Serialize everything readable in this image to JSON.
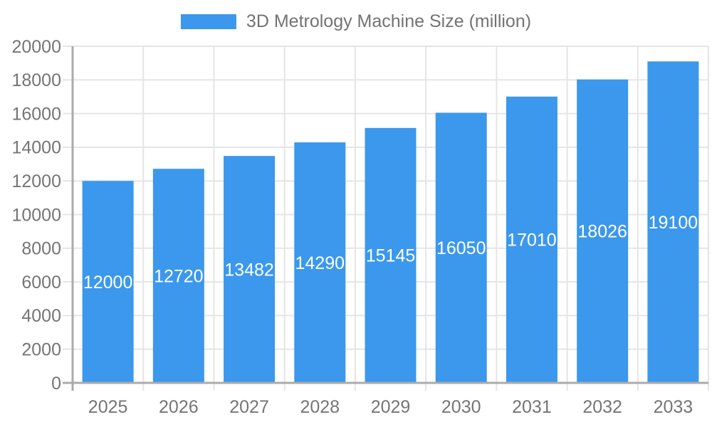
{
  "legend": {
    "label": "3D Metrology Machine Size (million)",
    "swatch_color": "#3B98EC"
  },
  "chart_data": {
    "type": "bar",
    "title": "",
    "categories": [
      "2025",
      "2026",
      "2027",
      "2028",
      "2029",
      "2030",
      "2031",
      "2032",
      "2033"
    ],
    "series": [
      {
        "name": "3D Metrology Machine Size (million)",
        "values": [
          12000,
          12720,
          13482,
          14290,
          15145,
          16050,
          17010,
          18026,
          19100
        ]
      }
    ],
    "bar_labels": [
      "12000",
      "12720",
      "13482",
      "14290",
      "15145",
      "16050",
      "17010",
      "18026",
      "19100"
    ],
    "xlabel": "",
    "ylabel": "",
    "ylim": [
      0,
      20000
    ],
    "ytick_step": 2000,
    "yticks": [
      "0",
      "2000",
      "4000",
      "6000",
      "8000",
      "10000",
      "12000",
      "14000",
      "16000",
      "18000",
      "20000"
    ],
    "grid": true,
    "legend_position": "top-center",
    "colors": {
      "bar_fill": "#3B98EC",
      "grid_line": "#E5E5E5",
      "axis_line": "#ABABAB",
      "tick_text": "#757575",
      "bar_label_text": "#ffffff",
      "background": "#ffffff"
    }
  }
}
